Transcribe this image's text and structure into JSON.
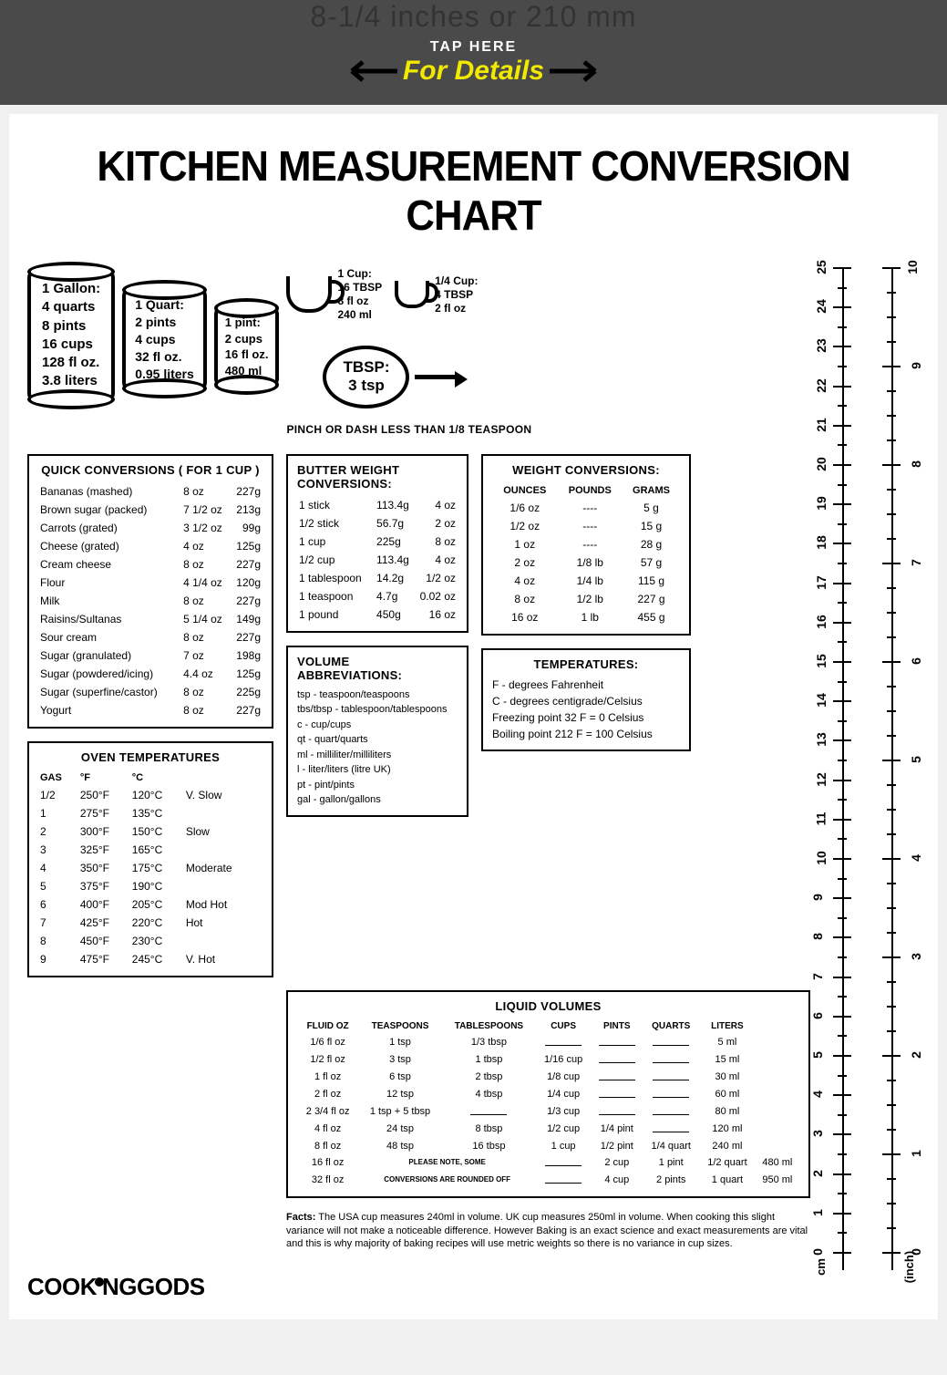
{
  "banner": {
    "dimension": "8-1/4 inches or 210 mm",
    "tap": "TAP HERE",
    "details": "For Details"
  },
  "title": "KITCHEN MEASUREMENT CONVERSION CHART",
  "cans": {
    "gallon": [
      "1 Gallon:",
      "4 quarts",
      "8 pints",
      "16 cups",
      "128 fl oz.",
      "3.8 liters"
    ],
    "quart": [
      "1 Quart:",
      "2 pints",
      "4 cups",
      "32 fl oz.",
      "0.95 liters"
    ],
    "pint": [
      "1 pint:",
      "2 cups",
      "16 fl oz.",
      "480 ml"
    ]
  },
  "cups": {
    "big": [
      "1 Cup:",
      "16 TBSP",
      "8 fl oz",
      "240 ml"
    ],
    "small": [
      "1/4 Cup:",
      "4 TBSP",
      "2 fl oz"
    ]
  },
  "tbsp": {
    "top": "TBSP:",
    "bottom": "3 tsp"
  },
  "pinch": "PINCH OR DASH LESS THAN 1/8 TEASPOON",
  "quick": {
    "title": "QUICK CONVERSIONS ( FOR 1 CUP )",
    "rows": [
      [
        "Bananas (mashed)",
        "8 oz",
        "227g"
      ],
      [
        "Brown sugar (packed)",
        "7 1/2 oz",
        "213g"
      ],
      [
        "Carrots (grated)",
        "3 1/2 oz",
        "99g"
      ],
      [
        "Cheese (grated)",
        "4 oz",
        "125g"
      ],
      [
        "Cream cheese",
        "8 oz",
        "227g"
      ],
      [
        "Flour",
        "4 1/4 oz",
        "120g"
      ],
      [
        "Milk",
        "8 oz",
        "227g"
      ],
      [
        "Raisins/Sultanas",
        "5 1/4 oz",
        "149g"
      ],
      [
        "Sour cream",
        "8 oz",
        "227g"
      ],
      [
        "Sugar (granulated)",
        "7 oz",
        "198g"
      ],
      [
        "Sugar (powdered/icing)",
        "4.4 oz",
        "125g"
      ],
      [
        "Sugar (superfine/castor)",
        "8 oz",
        "225g"
      ],
      [
        "Yogurt",
        "8 oz",
        "227g"
      ]
    ]
  },
  "butter": {
    "title": "BUTTER WEIGHT CONVERSIONS:",
    "rows": [
      [
        "1 stick",
        "113.4g",
        "4 oz"
      ],
      [
        "1/2 stick",
        "56.7g",
        "2 oz"
      ],
      [
        "1 cup",
        "225g",
        "8 oz"
      ],
      [
        "1/2 cup",
        "113.4g",
        "4 oz"
      ],
      [
        "1 tablespoon",
        "14.2g",
        "1/2 oz"
      ],
      [
        "1 teaspoon",
        "4.7g",
        "0.02 oz"
      ],
      [
        "1 pound",
        "450g",
        "16 oz"
      ]
    ]
  },
  "abbr": {
    "title": "VOLUME ABBREVIATIONS:",
    "rows": [
      "tsp - teaspoon/teaspoons",
      "tbs/tbsp - tablespoon/tablespoons",
      "c - cup/cups",
      "qt - quart/quarts",
      "ml - milliliter/milliliters",
      "l - liter/liters (litre UK)",
      "pt - pint/pints",
      "gal - gallon/gallons"
    ]
  },
  "weight": {
    "title": "WEIGHT CONVERSIONS:",
    "headers": [
      "OUNCES",
      "POUNDS",
      "GRAMS"
    ],
    "rows": [
      [
        "1/6 oz",
        "----",
        "5 g"
      ],
      [
        "1/2 oz",
        "----",
        "15 g"
      ],
      [
        "1 oz",
        "----",
        "28 g"
      ],
      [
        "2 oz",
        "1/8 lb",
        "57 g"
      ],
      [
        "4 oz",
        "1/4 lb",
        "115 g"
      ],
      [
        "8 oz",
        "1/2 lb",
        "227 g"
      ],
      [
        "16 oz",
        "1 lb",
        "455 g"
      ]
    ]
  },
  "temp": {
    "title": "TEMPERATURES:",
    "lines": [
      "F - degrees Fahrenheit",
      "C - degrees centigrade/Celsius",
      "Freezing point    32 F = 0 Celsius",
      "Boiling point     212 F = 100 Celsius"
    ]
  },
  "oven": {
    "title": "OVEN TEMPERATURES",
    "headers": [
      "GAS",
      "°F",
      "°C",
      ""
    ],
    "rows": [
      [
        "1/2",
        "250°F",
        "120°C",
        "V. Slow"
      ],
      [
        "1",
        "275°F",
        "135°C",
        ""
      ],
      [
        "2",
        "300°F",
        "150°C",
        "Slow"
      ],
      [
        "3",
        "325°F",
        "165°C",
        ""
      ],
      [
        "4",
        "350°F",
        "175°C",
        "Moderate"
      ],
      [
        "5",
        "375°F",
        "190°C",
        ""
      ],
      [
        "6",
        "400°F",
        "205°C",
        "Mod Hot"
      ],
      [
        "7",
        "425°F",
        "220°C",
        "Hot"
      ],
      [
        "8",
        "450°F",
        "230°C",
        ""
      ],
      [
        "9",
        "475°F",
        "245°C",
        "V. Hot"
      ]
    ]
  },
  "liquid": {
    "title": "LIQUID VOLUMES",
    "headers": [
      "FLUID OZ",
      "TEASPOONS",
      "TABLESPOONS",
      "CUPS",
      "PINTS",
      "QUARTS",
      "LITERS"
    ],
    "rows": [
      [
        "1/6 fl oz",
        "1 tsp",
        "1/3 tbsp",
        "",
        "",
        "",
        "5 ml"
      ],
      [
        "1/2 fl oz",
        "3 tsp",
        "1 tbsp",
        "1/16 cup",
        "",
        "",
        "15 ml"
      ],
      [
        "1 fl oz",
        "6 tsp",
        "2 tbsp",
        "1/8 cup",
        "",
        "",
        "30 ml"
      ],
      [
        "2 fl oz",
        "12 tsp",
        "4 tbsp",
        "1/4 cup",
        "",
        "",
        "60 ml"
      ],
      [
        "2 3/4 fl oz",
        "1 tsp + 5 tbsp",
        "",
        "1/3 cup",
        "",
        "",
        "80 ml"
      ],
      [
        "4 fl oz",
        "24 tsp",
        "8 tbsp",
        "1/2 cup",
        "1/4 pint",
        "",
        "120 ml"
      ],
      [
        "8 fl oz",
        "48 tsp",
        "16 tbsp",
        "1 cup",
        "1/2 pint",
        "1/4 quart",
        "240 ml"
      ],
      [
        "16 fl oz",
        "*NOTE*",
        "",
        "2 cup",
        "1 pint",
        "1/2 quart",
        "480 ml"
      ],
      [
        "32 fl oz",
        "*NOTE2*",
        "",
        "4 cup",
        "2 pints",
        "1 quart",
        "950 ml"
      ]
    ],
    "note1": "PLEASE NOTE, SOME",
    "note2": "CONVERSIONS ARE ROUNDED OFF"
  },
  "facts": "Facts: The USA cup measures 240ml in volume. UK cup measures 250ml in volume. When cooking this slight variance will not make a noticeable difference. However Baking is an exact science and exact measurements are vital and this is why majority of baking recipes will use metric weights so there is no variance in cup sizes.",
  "logo": "COOKINGGODS",
  "ruler": {
    "cm_label": "cm",
    "inch_label": "(inch)",
    "cm_max": 25,
    "inch_max": 10
  }
}
